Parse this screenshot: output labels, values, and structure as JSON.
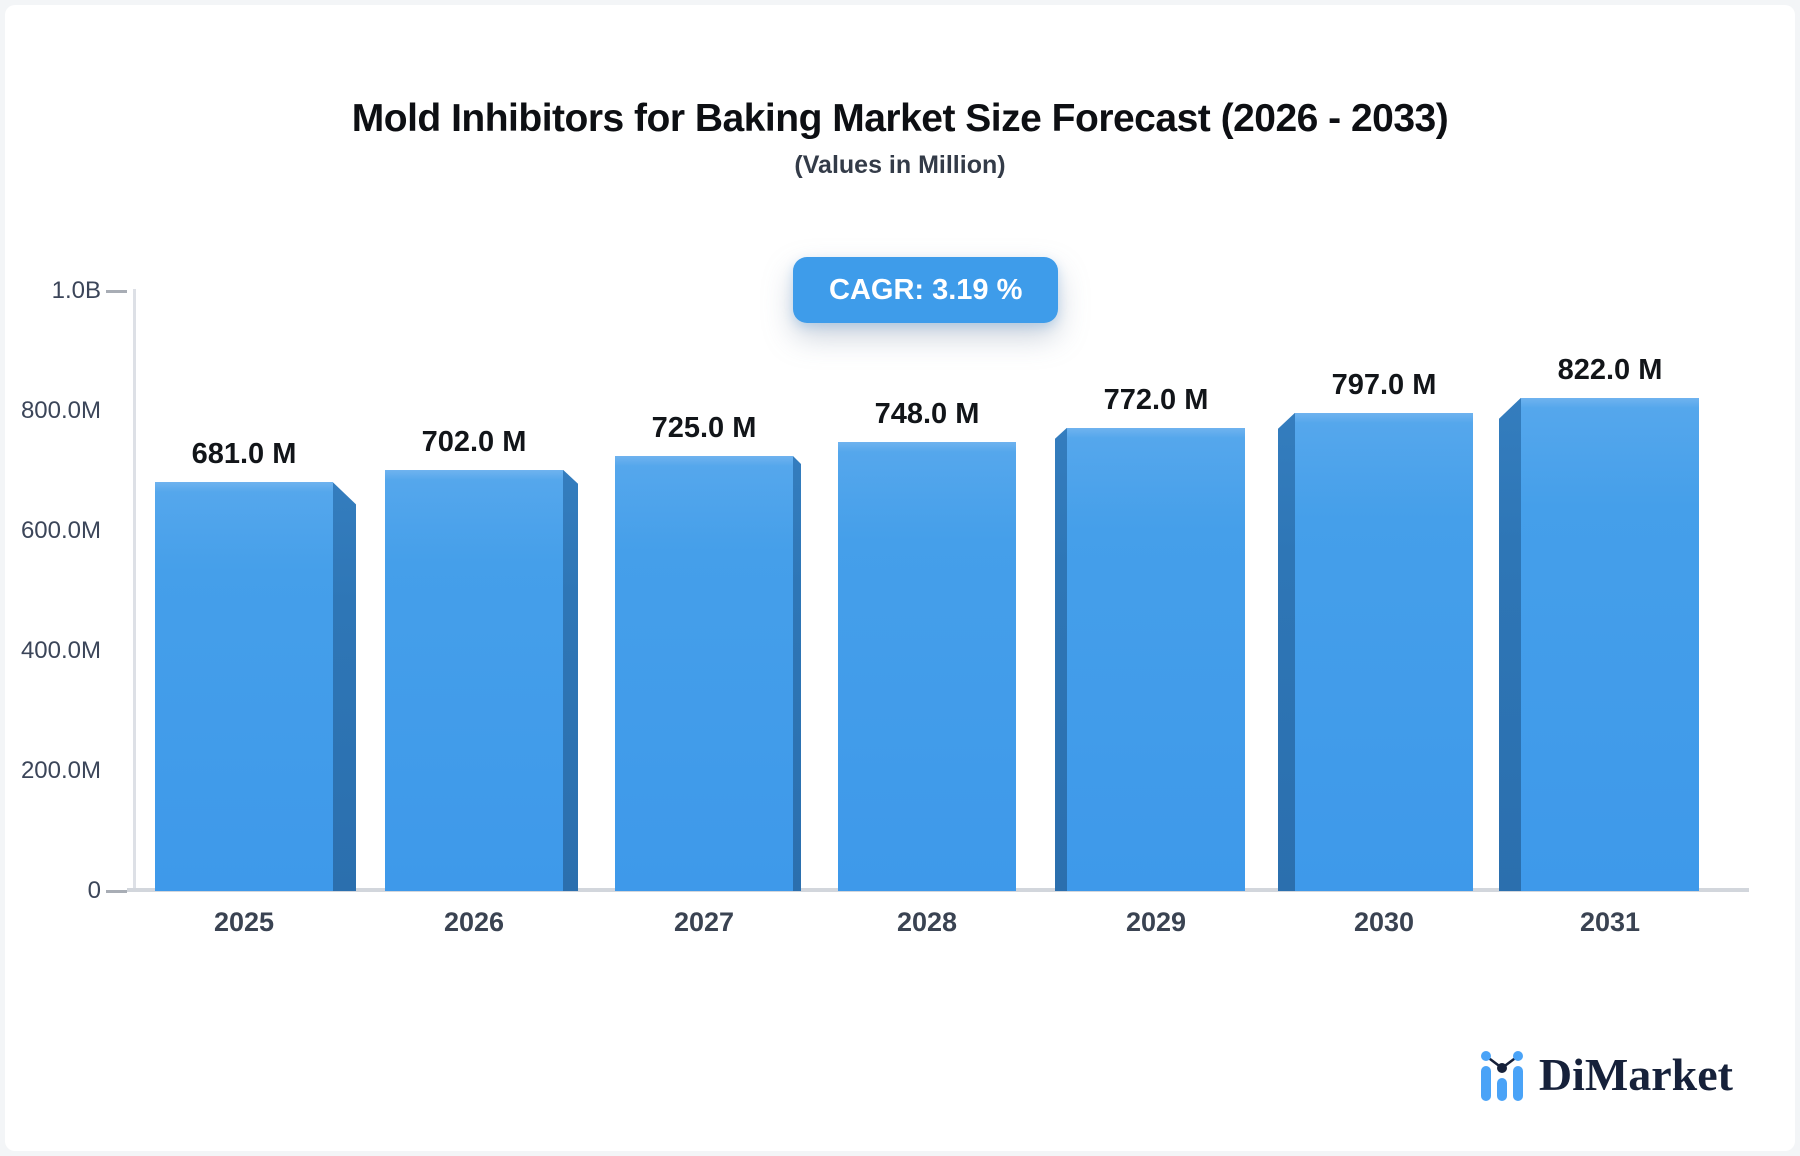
{
  "page": {
    "background": "#f3f5f7",
    "card_background": "#ffffff"
  },
  "header": {
    "title": "Mold Inhibitors for Baking Market Size Forecast (2026 - 2033)",
    "subtitle": "(Values in Million)"
  },
  "badge": {
    "label": "CAGR: 3.19 %",
    "background": "#3E9CEA",
    "text_color": "#ffffff"
  },
  "chart_data": {
    "type": "bar",
    "title": "Mold Inhibitors for Baking Market Size Forecast (2026 - 2033)",
    "subtitle": "(Values in Million)",
    "cagr": "3.19 %",
    "categories": [
      "2025",
      "2026",
      "2027",
      "2028",
      "2029",
      "2030",
      "2031"
    ],
    "values": [
      681.0,
      702.0,
      725.0,
      748.0,
      772.0,
      797.0,
      822.0
    ],
    "value_labels": [
      "681.0 M",
      "702.0 M",
      "725.0 M",
      "748.0 M",
      "772.0 M",
      "797.0 M",
      "822.0 M"
    ],
    "unit": "Million",
    "ylim": [
      0,
      1000
    ],
    "y_ticks": [
      {
        "value": 0,
        "label": "0"
      },
      {
        "value": 200,
        "label": "200.0M"
      },
      {
        "value": 400,
        "label": "400.0M"
      },
      {
        "value": 600,
        "label": "600.0M"
      },
      {
        "value": 800,
        "label": "800.0M"
      },
      {
        "value": 1000,
        "label": "1.0B"
      }
    ],
    "grid": false,
    "legend": false,
    "bar_color": "#459FEA",
    "bar_color_top": "#6FB3EF",
    "bar_side_color": "#2E76B6",
    "style": "3d-bevel-toward-center"
  },
  "footer": {
    "logo_text": "DiMarket",
    "logo_icon": "mini-bar-chart-logo-icon",
    "logo_icon_color": "#4AA3F7",
    "logo_text_color": "#16213a"
  }
}
